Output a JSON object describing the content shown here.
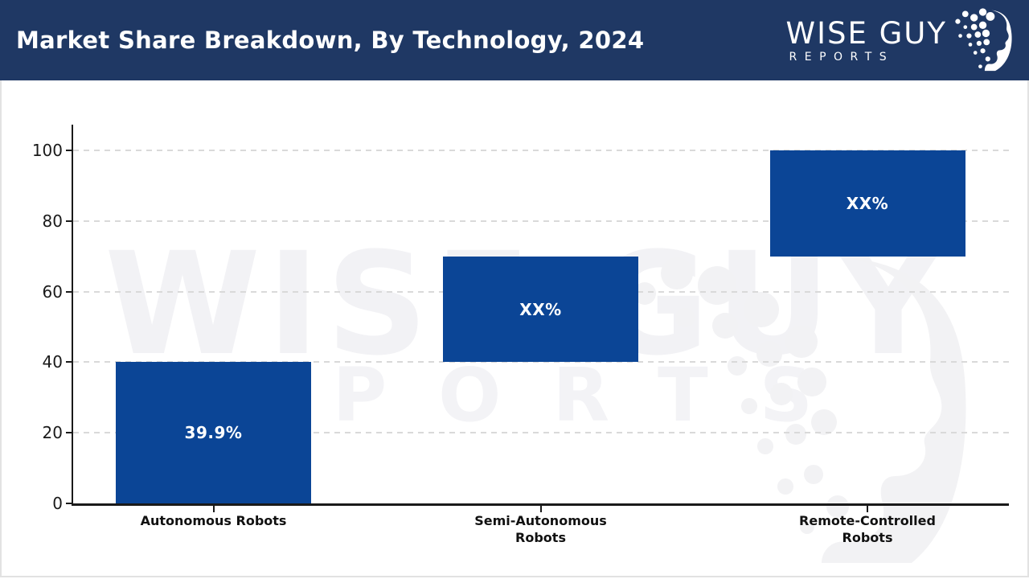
{
  "header": {
    "title": "Market Share Breakdown, By Technology, 2024",
    "logo": {
      "line1": "WISE GUY",
      "line2": "REPORTS"
    }
  },
  "watermark": {
    "line1": "WISE GUY",
    "line2": "REPORTS"
  },
  "colors": {
    "header_bg": "#1f3864",
    "bar_blue": "#0b4596",
    "axis": "#1a1a1a",
    "gridline": "#d9d9d9",
    "watermark": "#f2f2f5"
  },
  "chart_data": {
    "type": "bar",
    "variant": "floating-range-segments",
    "title": "Market Share Breakdown, By Technology, 2024",
    "categories": [
      "Autonomous Robots",
      "Semi-Autonomous\nRobots",
      "Remote-Controlled\nRobots"
    ],
    "bars": [
      {
        "category": "Autonomous Robots",
        "from": 0,
        "to": 40,
        "label": "39.9%"
      },
      {
        "category": "Semi-Autonomous Robots",
        "from": 40,
        "to": 70,
        "label": "XX%"
      },
      {
        "category": "Remote-Controlled Robots",
        "from": 70,
        "to": 100,
        "label": "XX%"
      }
    ],
    "yticks": [
      0,
      20,
      40,
      60,
      80,
      100
    ],
    "ylim": [
      0,
      107
    ],
    "xlabel": "",
    "ylabel": "",
    "bar_color": "#0b4596",
    "value_label_color": "#ffffff",
    "grid": {
      "axis": "y",
      "style": "dashed",
      "color": "#d9d9d9"
    },
    "legend": null
  }
}
